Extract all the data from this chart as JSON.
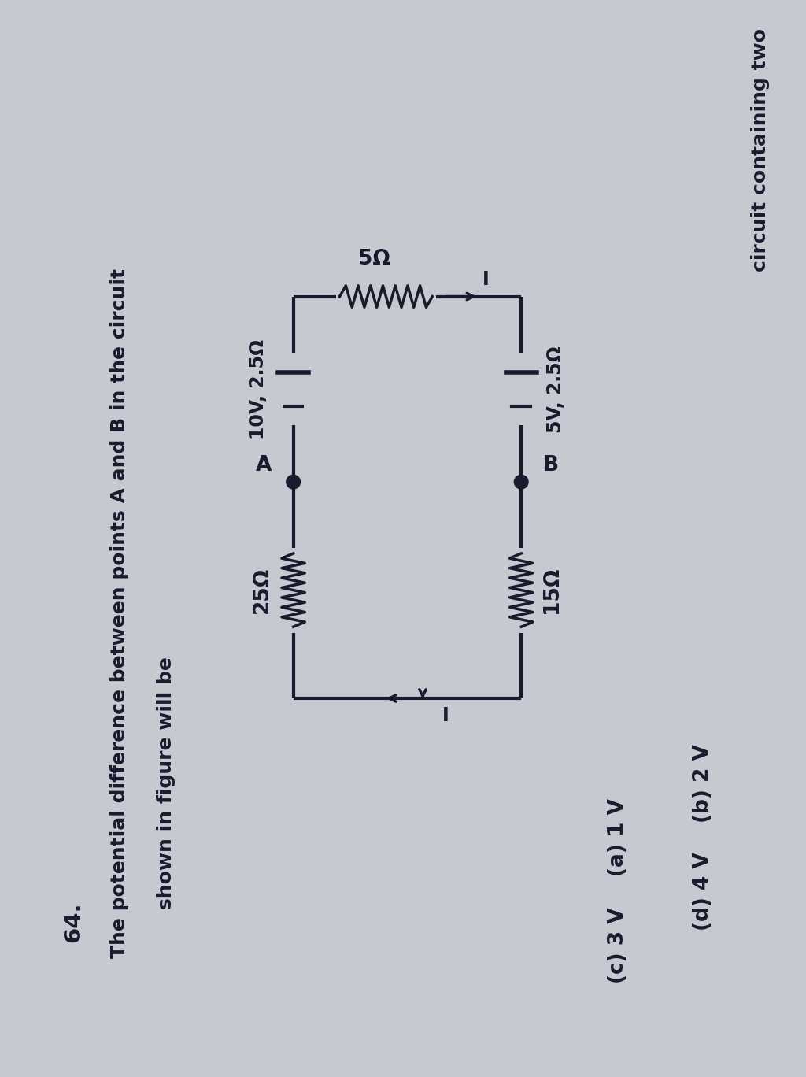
{
  "title_number": "64.",
  "title_text": "The potential difference between points A and B in the circuit",
  "title_text2": "shown in figure will be",
  "background_color": "#c8c8d0",
  "text_color": "#1a1a2e",
  "options": [
    "(a) 1 V",
    "(b) 2 V",
    "(c) 3 V",
    "(d) 4 V"
  ],
  "circuit": {
    "left_battery_emf": "10V",
    "left_battery_r": "2.5Ω",
    "right_battery_emf": "5V",
    "right_battery_r": "2.5Ω",
    "top_resistor": "5Ω",
    "bottom_left_resistor": "25Ω",
    "bottom_right_resistor": "15Ω",
    "node_A_label": "A",
    "node_B_label": "B",
    "current_label": "I"
  },
  "bottom_text": "circuit containing two"
}
